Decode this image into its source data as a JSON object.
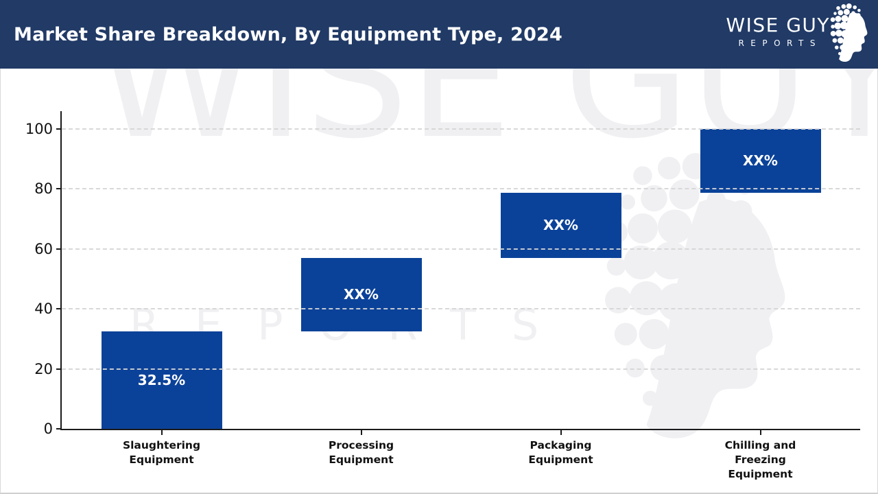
{
  "header": {
    "title": "Market Share Breakdown, By Equipment Type, 2024",
    "logo": {
      "name": "WISE GUY",
      "sub": "REPORTS"
    }
  },
  "watermark": {
    "line1": "WISE GUY",
    "line2": "REPORTS"
  },
  "colors": {
    "header_bg": "#213a66",
    "bar_blue": "#0b4299",
    "gridline": "#d5d5d5",
    "axis": "#1a1a1a",
    "bar_label_text": "#ffffff",
    "watermark": "#f0f0f3"
  },
  "chart_data": {
    "type": "bar",
    "subtype": "waterfall",
    "title": "Market Share Breakdown, By Equipment Type, 2024",
    "categories": [
      "Slaughtering Equipment",
      "Processing Equipment",
      "Packaging Equipment",
      "Chilling and Freezing Equipment"
    ],
    "segments": [
      {
        "category": "Slaughtering Equipment",
        "tick_label": "Slaughtering\nEquipment",
        "label": "32.5%",
        "start": 0,
        "end": 32.5
      },
      {
        "category": "Processing Equipment",
        "tick_label": "Processing\nEquipment",
        "label": "XX%",
        "start": 32.5,
        "end": 57
      },
      {
        "category": "Packaging Equipment",
        "tick_label": "Packaging\nEquipment",
        "label": "XX%",
        "start": 57,
        "end": 78.7
      },
      {
        "category": "Chilling and Freezing Equipment",
        "tick_label": "Chilling and\nFreezing Equipment",
        "label": "XX%",
        "start": 78.7,
        "end": 100
      }
    ],
    "xlabel": "",
    "ylabel": "",
    "ylim": [
      0,
      100
    ],
    "yticks": [
      0,
      20,
      40,
      60,
      80,
      100
    ],
    "grid": "horizontal-dashed",
    "legend": false
  }
}
